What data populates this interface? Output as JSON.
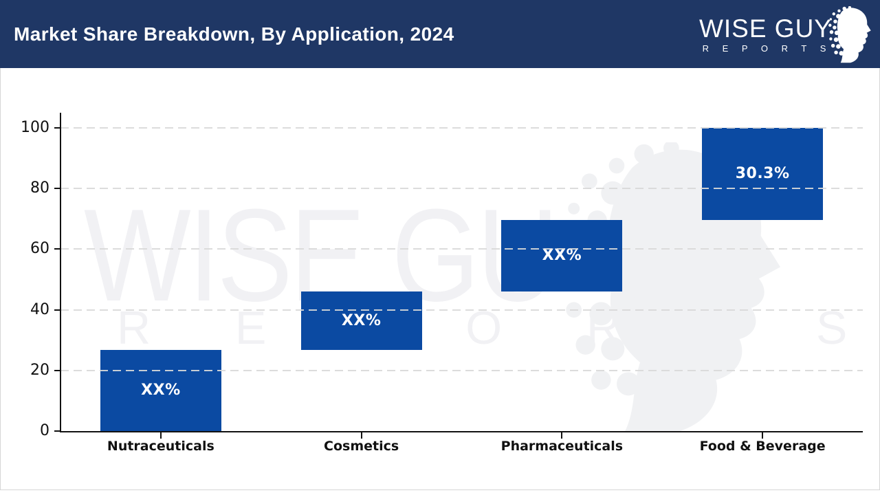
{
  "header": {
    "title": "Market Share Breakdown, By Application, 2024",
    "brand": {
      "line1": "WISE GUY",
      "line2": "R E P O R T S"
    },
    "bg_color": "#1f3765"
  },
  "watermark": {
    "line1": "WISE GU",
    "line2": "R E P O R T S"
  },
  "chart_data": {
    "type": "bar",
    "subtype": "waterfall",
    "title": "Market Share Breakdown, By Application, 2024",
    "categories": [
      "Nutraceuticals",
      "Cosmetics",
      "Pharmaceuticals",
      "Food & Beverage"
    ],
    "segments": [
      {
        "category": "Nutraceuticals",
        "start": 0,
        "end": 26.8,
        "value_pct": 26.8,
        "label": "XX%"
      },
      {
        "category": "Cosmetics",
        "start": 26.8,
        "end": 46.0,
        "value_pct": 19.2,
        "label": "XX%"
      },
      {
        "category": "Pharmaceuticals",
        "start": 46.0,
        "end": 69.7,
        "value_pct": 23.7,
        "label": "XX%"
      },
      {
        "category": "Food & Beverage",
        "start": 69.7,
        "end": 100,
        "value_pct": 30.3,
        "label": "30.3%"
      }
    ],
    "yticks": [
      0,
      20,
      40,
      60,
      80,
      100
    ],
    "ylim": [
      0,
      105
    ],
    "xlabel": "",
    "ylabel": "",
    "grid": "horizontal dashed, drawn over bars",
    "legend": "none",
    "bar_color": "#0b4aa2",
    "axis_color": "#111111",
    "gridline_color": "#d9d9d9",
    "value_label_color": "#ffffff"
  }
}
